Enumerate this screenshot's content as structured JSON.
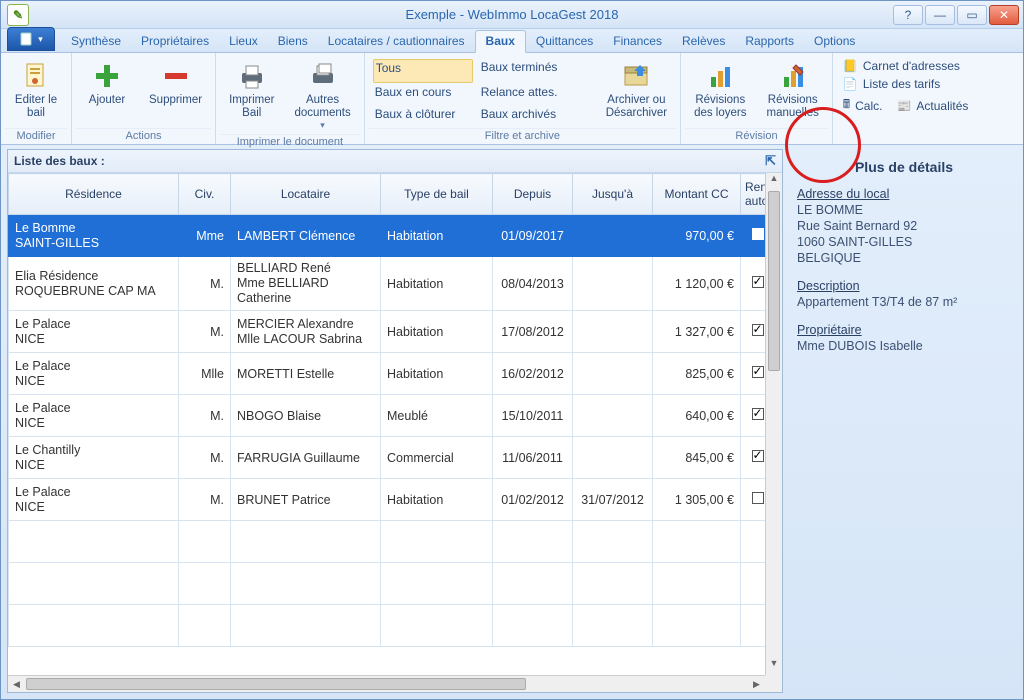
{
  "window": {
    "title": "Exemple - WebImmo LocaGest 2018"
  },
  "menu_tabs": [
    "Synthèse",
    "Propriétaires",
    "Lieux",
    "Biens",
    "Locataires / cautionnaires",
    "Baux",
    "Quittances",
    "Finances",
    "Relèves",
    "Rapports",
    "Options"
  ],
  "menu_active_index": 5,
  "ribbon": {
    "groups": {
      "modifier": {
        "label": "Modifier",
        "editer": "Editer le\nbail"
      },
      "actions": {
        "label": "Actions",
        "ajouter": "Ajouter",
        "supprimer": "Supprimer"
      },
      "imprimer": {
        "label": "Imprimer le document",
        "imprimer_bail": "Imprimer\nBail",
        "autres_docs": "Autres\ndocuments"
      },
      "filtre": {
        "label": "Filtre et archive",
        "options_col1": [
          "Tous",
          "Baux en cours",
          "Baux à clôturer"
        ],
        "options_col2": [
          "Baux terminés",
          "Relance attes.",
          "Baux archivés"
        ],
        "selected": "Tous",
        "archiver": "Archiver ou\nDésarchiver"
      },
      "revision": {
        "label": "Révision",
        "rev_loyers": "Révisions\ndes loyers",
        "rev_manuelles": "Révisions\nmanuelles"
      }
    },
    "side_links": {
      "carnet": "Carnet d'adresses",
      "tarifs": "Liste des tarifs",
      "calc": "Calc.",
      "actualites": "Actualités"
    }
  },
  "list": {
    "title": "Liste des baux :",
    "columns": [
      "Résidence",
      "Civ.",
      "Locataire",
      "Type de bail",
      "Depuis",
      "Jusqu'à",
      "Montant CC",
      "Ren.\nauto."
    ],
    "rows": [
      {
        "residence": "Le Bomme\nSAINT-GILLES",
        "civ": "Mme",
        "locataire": "LAMBERT Clémence",
        "type": "Habitation",
        "depuis": "01/09/2017",
        "jusqua": "",
        "montant": "970,00 €",
        "ren": true,
        "selected": true
      },
      {
        "residence": "Elia Résidence\nROQUEBRUNE CAP MA",
        "civ": "M.",
        "locataire": "BELLIARD René\nMme BELLIARD Catherine",
        "type": "Habitation",
        "depuis": "08/04/2013",
        "jusqua": "",
        "montant": "1 120,00 €",
        "ren": true
      },
      {
        "residence": "Le Palace\nNICE",
        "civ": "M.",
        "locataire": "MERCIER Alexandre\nMlle LACOUR Sabrina",
        "type": "Habitation",
        "depuis": "17/08/2012",
        "jusqua": "",
        "montant": "1 327,00 €",
        "ren": true
      },
      {
        "residence": "Le Palace\nNICE",
        "civ": "Mlle",
        "locataire": "MORETTI Estelle",
        "type": "Habitation",
        "depuis": "16/02/2012",
        "jusqua": "",
        "montant": "825,00 €",
        "ren": true
      },
      {
        "residence": "Le Palace\nNICE",
        "civ": "M.",
        "locataire": "NBOGO Blaise",
        "type": "Meublé",
        "depuis": "15/10/2011",
        "jusqua": "",
        "montant": "640,00 €",
        "ren": true
      },
      {
        "residence": "Le Chantilly\nNICE",
        "civ": "M.",
        "locataire": "FARRUGIA Guillaume",
        "type": "Commercial",
        "depuis": "11/06/2011",
        "jusqua": "",
        "montant": "845,00 €",
        "ren": true
      },
      {
        "residence": "Le Palace\nNICE",
        "civ": "M.",
        "locataire": "BRUNET Patrice",
        "type": "Habitation",
        "depuis": "01/02/2012",
        "jusqua": "31/07/2012",
        "montant": "1 305,00 €",
        "ren": false
      }
    ],
    "empty_rows": 3
  },
  "details": {
    "title": "Plus de détails",
    "adresse_label": "Adresse du local",
    "adresse_lines": [
      "LE BOMME",
      "Rue Saint Bernard 92",
      "1060 SAINT-GILLES",
      "BELGIQUE"
    ],
    "description_label": "Description",
    "description_value": "Appartement T3/T4 de 87 m²",
    "proprietaire_label": "Propriétaire",
    "proprietaire_value": "Mme DUBOIS Isabelle"
  },
  "colors": {
    "highlight_red": "#d81e1e",
    "selection_blue": "#1f6fd6",
    "accent_blue": "#2a66ad"
  }
}
